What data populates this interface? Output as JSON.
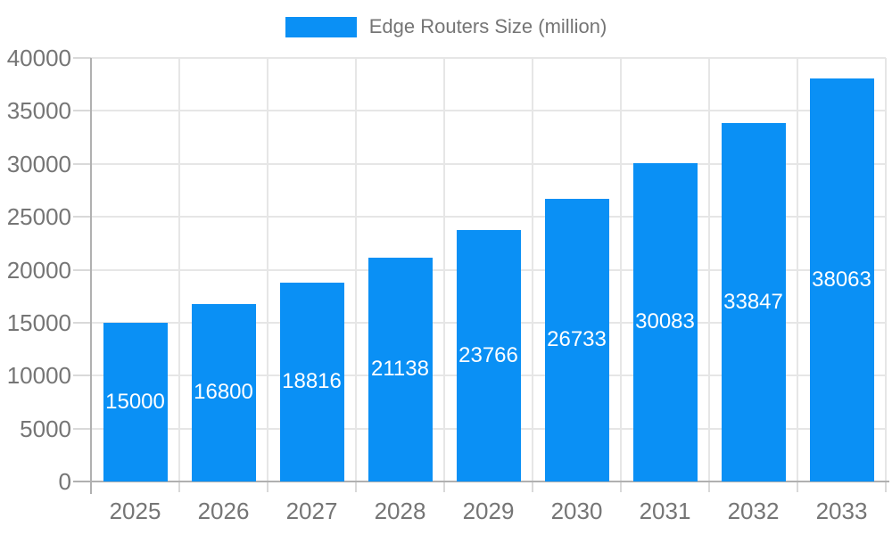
{
  "chart_data": {
    "type": "bar",
    "title": "",
    "legend_label": "Edge Routers Size (million)",
    "legend_position": "top",
    "categories": [
      "2025",
      "2026",
      "2027",
      "2028",
      "2029",
      "2030",
      "2031",
      "2032",
      "2033"
    ],
    "series": [
      {
        "name": "Edge Routers Size (million)",
        "values": [
          15000,
          16800,
          18816,
          21138,
          23766,
          26733,
          30083,
          33847,
          38063
        ]
      }
    ],
    "value_labels_visible": true,
    "xlabel": "",
    "ylabel": "",
    "ylim": [
      0,
      40000
    ],
    "ytick_step": 5000,
    "yticks": [
      0,
      5000,
      10000,
      15000,
      20000,
      25000,
      30000,
      35000,
      40000
    ],
    "grid": true,
    "colors": {
      "bar": "#0a90f5",
      "axis_text": "#757575",
      "legend_text": "#757575",
      "value_label_text": "#ffffff",
      "gridline": "#e6e6e6",
      "tick": "#d9d9d9",
      "axis_line": "#b0b0b0",
      "background": "#ffffff"
    }
  }
}
